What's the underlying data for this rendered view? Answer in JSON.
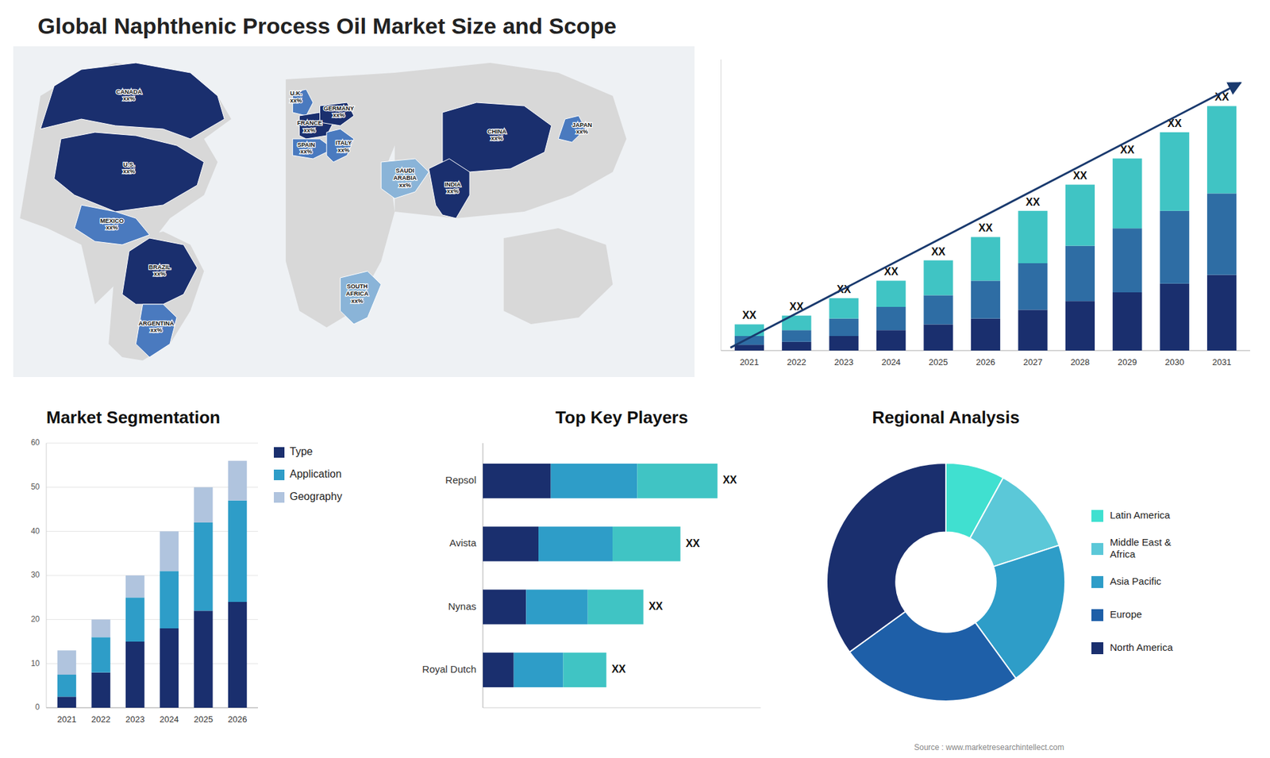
{
  "chart_data": [
    {
      "type": "map",
      "title": "Global Naphthenic Process Oil Market Size and Scope",
      "categories": [
        "CANADA\nxx%",
        "U.S.\nxx%",
        "MEXICO\nxx%",
        "BRAZIL\nxx%",
        "ARGENTINA\nxx%",
        "U.K.\nxx%",
        "FRANCE\nxx%",
        "SPAIN\nxx%",
        "GERMANY\nxx%",
        "ITALY\nxx%",
        "SAUDI\nARABIA\nxx%",
        "SOUTH\nAFRICA\nxx%",
        "CHINA\nxx%",
        "INDIA\nxx%",
        "JAPAN\nxx%"
      ],
      "colors": [
        "#1a2f6e",
        "#1a2f6e",
        "#4a7abf",
        "#1a2f6e",
        "#4a7abf",
        "#4a7abf",
        "#1a2f6e",
        "#4a7abf",
        "#1a2f6e",
        "#4a7abf",
        "#8ab4d8",
        "#8ab4d8",
        "#1a2f6e",
        "#1a2f6e",
        "#4a7abf"
      ]
    },
    {
      "type": "bar",
      "stacked": true,
      "categories": [
        "2021",
        "2022",
        "2023",
        "2024",
        "2025",
        "2026",
        "2027",
        "2028",
        "2029",
        "2030",
        "2031"
      ],
      "series": [
        {
          "color": "#1a2f6e",
          "values": [
            2,
            3,
            5,
            7,
            9,
            11,
            14,
            17,
            20,
            23,
            26
          ]
        },
        {
          "color": "#2e6da4",
          "values": [
            3,
            4,
            6,
            8,
            10,
            13,
            16,
            19,
            22,
            25,
            28
          ]
        },
        {
          "color": "#40c4c4",
          "values": [
            4,
            5,
            7,
            9,
            12,
            15,
            18,
            21,
            24,
            27,
            30
          ]
        }
      ],
      "annotations": [
        "XX",
        "XX",
        "XX",
        "XX",
        "XX",
        "XX",
        "XX",
        "XX",
        "XX",
        "XX",
        "XX"
      ],
      "ylim": [
        0,
        100
      ],
      "tick_labels": "x"
    },
    {
      "type": "bar",
      "title": "Market Segmentation",
      "stacked": true,
      "categories": [
        "2021",
        "2022",
        "2023",
        "2024",
        "2025",
        "2026"
      ],
      "series": [
        {
          "name": "Type",
          "color": "#1a2f6e",
          "values": [
            2.5,
            8,
            15,
            18,
            22,
            24
          ]
        },
        {
          "name": "Application",
          "color": "#2e9dc8",
          "values": [
            5,
            8,
            10,
            13,
            20,
            23
          ]
        },
        {
          "name": "Geography",
          "color": "#b0c4de",
          "values": [
            5.5,
            4,
            5,
            9,
            8,
            9
          ]
        }
      ],
      "ylim": [
        0,
        60
      ],
      "yticks": [
        0,
        10,
        20,
        30,
        40,
        50,
        60
      ],
      "grid": true,
      "legend": "right"
    },
    {
      "type": "bar",
      "title": "Top Key Players",
      "orientation": "horizontal",
      "stacked": true,
      "categories": [
        "Royal Dutch",
        "Nynas",
        "Avista",
        "Repsol"
      ],
      "series": [
        {
          "color": "#1a2f6e",
          "values": [
            5,
            7,
            9,
            11
          ]
        },
        {
          "color": "#2e9dc8",
          "values": [
            8,
            10,
            12,
            14
          ]
        },
        {
          "color": "#40c4c4",
          "values": [
            7,
            9,
            11,
            13
          ]
        }
      ],
      "annotations": [
        "XX",
        "XX",
        "XX",
        "XX"
      ],
      "xlim": [
        0,
        45
      ],
      "tick_labels": "y"
    },
    {
      "type": "pie",
      "title": "Regional Analysis",
      "categories": [
        "Latin America",
        "Middle East &\nAfrica",
        "Asia Pacific",
        "Europe",
        "North America"
      ],
      "values": [
        8,
        12,
        20,
        25,
        35
      ],
      "colors": [
        "#40e0d0",
        "#5bc8d8",
        "#2e9dc8",
        "#1e5fa8",
        "#1a2f6e"
      ],
      "legend": "right",
      "annotations": [
        "Source : www.marketresearchintellect.com"
      ]
    }
  ]
}
